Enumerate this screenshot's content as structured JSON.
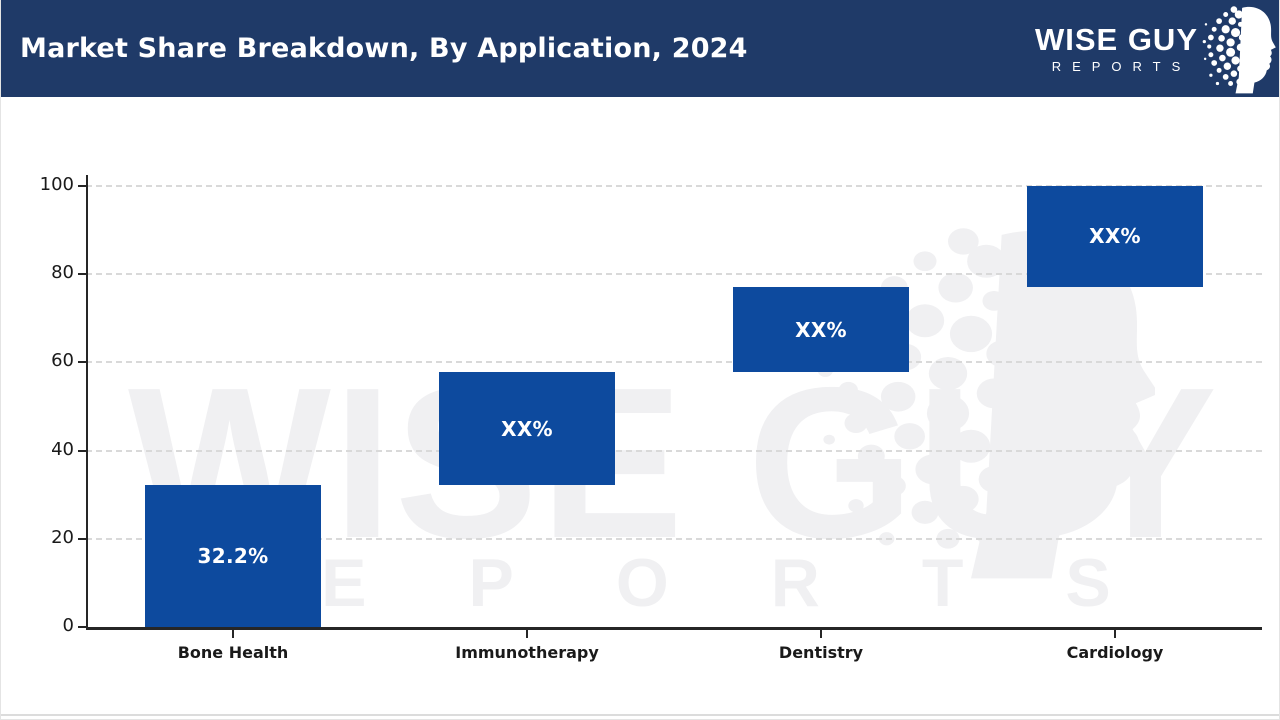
{
  "header": {
    "title": "Market Share Breakdown, By Application, 2024",
    "logo": {
      "line1": "WISE GUY",
      "line2": "REPORTS"
    }
  },
  "watermark": {
    "line1": "WISE GUY",
    "line2": "REPORTS"
  },
  "colors": {
    "header_bg": "#1f3a68",
    "bar_blue": "#0d4a9e",
    "axis": "#262626",
    "gridline": "#d9d9d9",
    "watermark": "#f0f0f2"
  },
  "chart_data": {
    "type": "bar",
    "subtype": "waterfall",
    "title": "Market Share Breakdown, By Application, 2024",
    "categories": [
      "Bone Health",
      "Immunotherapy",
      "Dentistry",
      "Cardiology"
    ],
    "series": [
      {
        "name": "Market Share",
        "unit": "%",
        "segments": [
          {
            "category": "Bone Health",
            "start": 0,
            "end": 32.2,
            "label": "32.2%"
          },
          {
            "category": "Immunotherapy",
            "start": 32.2,
            "end": 57.8,
            "label": "XX%"
          },
          {
            "category": "Dentistry",
            "start": 57.8,
            "end": 77.1,
            "label": "XX%"
          },
          {
            "category": "Cardiology",
            "start": 77.1,
            "end": 100,
            "label": "XX%"
          }
        ]
      }
    ],
    "xlabel": "",
    "ylabel": "",
    "ylim": [
      0,
      100
    ],
    "yticks": [
      0,
      20,
      40,
      60,
      80,
      100
    ],
    "grid": "horizontal-dashed",
    "legend_position": "none",
    "bar_color": "#0d4a9e",
    "bar_label_color": "#ffffff"
  }
}
